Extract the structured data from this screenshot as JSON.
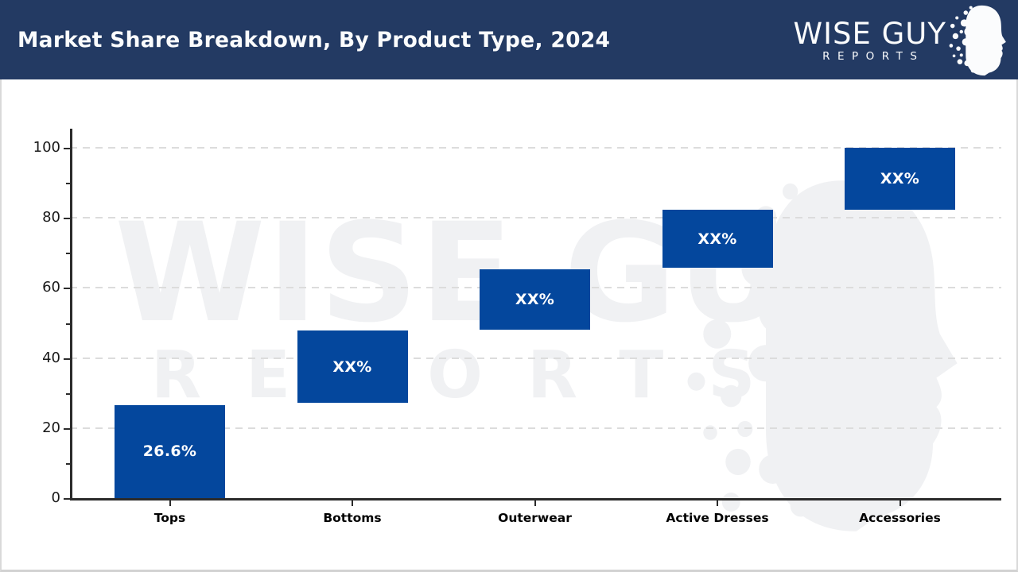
{
  "header": {
    "title": "Market Share Breakdown, By Product Type, 2024",
    "logo": {
      "line1": "WISE GUY",
      "line2": "REPORTS"
    }
  },
  "watermark": {
    "line1": "WISE GUY",
    "line2": "REPORTS"
  },
  "chart_data": {
    "type": "bar",
    "subtype": "waterfall-floating-bars",
    "title": "Market Share Breakdown, By Product Type, 2024",
    "xlabel": "",
    "ylabel": "",
    "ylim": [
      0,
      100
    ],
    "y_ticks": [
      0,
      20,
      40,
      60,
      80,
      100
    ],
    "y_minor_ticks": [
      10,
      30,
      50,
      70,
      90
    ],
    "grid": "dashed horizontal",
    "legend": "none",
    "categories": [
      "Tops",
      "Bottoms",
      "Outerwear",
      "Active Dresses",
      "Accessories"
    ],
    "segments": [
      {
        "category": "Tops",
        "start": 0,
        "end": 26.6,
        "label": "26.6%"
      },
      {
        "category": "Bottoms",
        "start": 27.2,
        "end": 47.8,
        "label": "XX%"
      },
      {
        "category": "Outerwear",
        "start": 48.0,
        "end": 65.2,
        "label": "XX%"
      },
      {
        "category": "Active Dresses",
        "start": 65.7,
        "end": 82.2,
        "label": "XX%"
      },
      {
        "category": "Accessories",
        "start": 82.4,
        "end": 100,
        "label": "XX%"
      }
    ]
  },
  "colors": {
    "header_bg": "#233a63",
    "header_text": "#fbfcfd",
    "bar": "#04479d",
    "bar_label": "#ffffff",
    "gridline": "#dcdcdc",
    "axis": "#2b2b2b",
    "watermark": "#f0f1f3"
  }
}
